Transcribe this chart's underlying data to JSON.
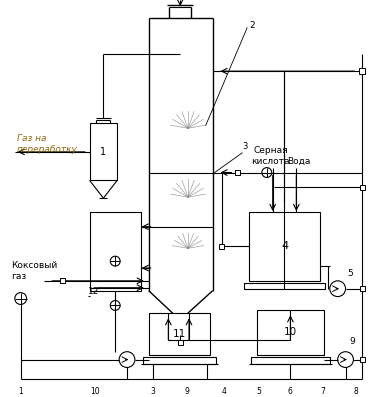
{
  "background": "#ffffff",
  "line_color": "#000000",
  "cyan_color": "#8B6914",
  "figsize": [
    3.82,
    3.97
  ],
  "dpi": 100,
  "labels": {
    "gaz_na_pererabotku": "Газ на\nпереработку",
    "koksoviy_gaz": "Коксовый\nгаз",
    "sernaya_kislota": "Серная\nкислота",
    "voda": "Вода"
  }
}
